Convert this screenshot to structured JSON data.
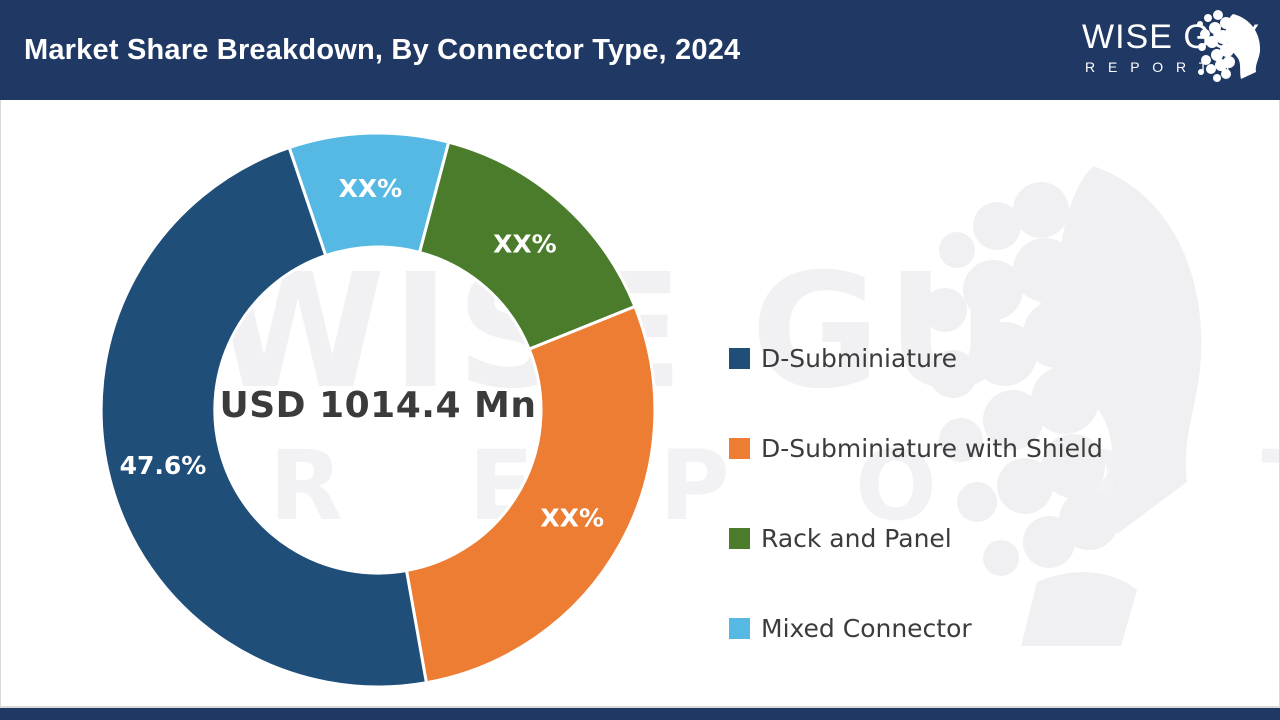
{
  "header": {
    "title": "Market Share Breakdown, By Connector Type, 2024",
    "logo": {
      "primary": "WISE GUY",
      "secondary": "R E P O R T S"
    }
  },
  "chart_data": {
    "type": "donut",
    "title": "Market Share Breakdown, By Connector Type, 2024",
    "center_label": "USD 1014.4 Mn",
    "units": "percent of market share",
    "start_angle_deg": -18.7,
    "legend_position": "right",
    "segments": [
      {
        "name": "Mixed Connector",
        "pct": 9.3,
        "label": "XX%",
        "color": "#56b9e4"
      },
      {
        "name": "Rack and Panel",
        "pct": 14.8,
        "label": "XX%",
        "color": "#4a7c2b"
      },
      {
        "name": "D-Subminiature with Shield",
        "pct": 28.3,
        "label": "XX%",
        "color": "#ec7d33"
      },
      {
        "name": "D-Subminiature",
        "pct": 47.6,
        "label": "47.6%",
        "color": "#1f4e79"
      }
    ],
    "legend": [
      {
        "name": "D-Subminiature",
        "color": "#1f4e79"
      },
      {
        "name": "D-Subminiature with Shield",
        "color": "#ec7d33"
      },
      {
        "name": "Rack and Panel",
        "color": "#4a7c2b"
      },
      {
        "name": "Mixed Connector",
        "color": "#56b9e4"
      }
    ]
  },
  "watermark": {
    "line1": "WISE GUY",
    "line2": "R E P O R T S"
  },
  "colors": {
    "header_bg": "#1f3864",
    "footer_bg": "#1f3864",
    "text_dark": "#3b3b3b"
  }
}
